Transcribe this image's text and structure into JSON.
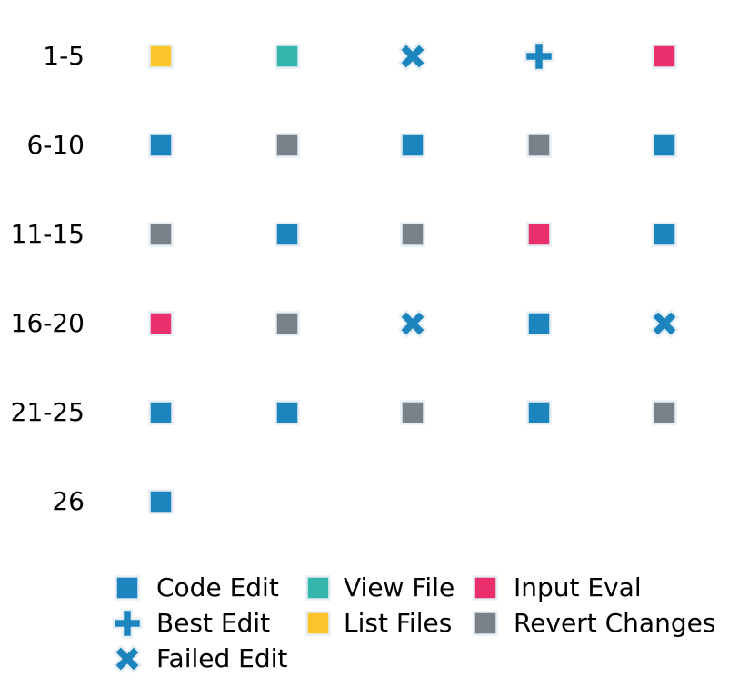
{
  "figure": {
    "background": "#ffffff",
    "text_color": "#000000"
  },
  "colors": {
    "blue": "#1d85be",
    "teal": "#36b5ac",
    "yellow": "#fdc42b",
    "pink": "#ea2f6d",
    "gray": "#7a8087",
    "marker_edge": "#e5eef5"
  },
  "marker_styles": {
    "Code Edit": {
      "shape": "square",
      "color": "#1d85be"
    },
    "View File": {
      "shape": "square",
      "color": "#36b5ac"
    },
    "Input Eval": {
      "shape": "square",
      "color": "#ea2f6d"
    },
    "Best Edit": {
      "shape": "plus",
      "color": "#1d85be"
    },
    "List Files": {
      "shape": "square",
      "color": "#fdc42b"
    },
    "Revert Changes": {
      "shape": "square",
      "color": "#7a8087"
    },
    "Failed Edit": {
      "shape": "cross",
      "color": "#1d85be"
    }
  },
  "chart_data": {
    "type": "scatter",
    "title": "",
    "xlabel": "",
    "ylabel": "",
    "grid": false,
    "legend_position": "bottom",
    "y_categories": [
      "1-5",
      "6-10",
      "11-15",
      "16-20",
      "21-25",
      "26"
    ],
    "x_positions": [
      1,
      2,
      3,
      4,
      5
    ],
    "rows": [
      {
        "label": "1-5",
        "actions": [
          "List Files",
          "View File",
          "Failed Edit",
          "Best Edit",
          "Input Eval"
        ]
      },
      {
        "label": "6-10",
        "actions": [
          "Code Edit",
          "Revert Changes",
          "Code Edit",
          "Revert Changes",
          "Code Edit"
        ]
      },
      {
        "label": "11-15",
        "actions": [
          "Revert Changes",
          "Code Edit",
          "Revert Changes",
          "Input Eval",
          "Code Edit"
        ]
      },
      {
        "label": "16-20",
        "actions": [
          "Input Eval",
          "Revert Changes",
          "Failed Edit",
          "Code Edit",
          "Failed Edit"
        ]
      },
      {
        "label": "21-25",
        "actions": [
          "Code Edit",
          "Code Edit",
          "Revert Changes",
          "Code Edit",
          "Revert Changes"
        ]
      },
      {
        "label": "26",
        "actions": [
          "Code Edit"
        ]
      }
    ],
    "legend": [
      {
        "label": "Code Edit",
        "shape": "square",
        "color": "#1d85be",
        "col": 0,
        "row": 0
      },
      {
        "label": "View File",
        "shape": "square",
        "color": "#36b5ac",
        "col": 1,
        "row": 0
      },
      {
        "label": "Input Eval",
        "shape": "square",
        "color": "#ea2f6d",
        "col": 2,
        "row": 0
      },
      {
        "label": "Best Edit",
        "shape": "plus",
        "color": "#1d85be",
        "col": 0,
        "row": 1
      },
      {
        "label": "List Files",
        "shape": "square",
        "color": "#fdc42b",
        "col": 1,
        "row": 1
      },
      {
        "label": "Revert Changes",
        "shape": "square",
        "color": "#7a8087",
        "col": 2,
        "row": 1
      },
      {
        "label": "Failed Edit",
        "shape": "cross",
        "color": "#1d85be",
        "col": 0,
        "row": 2
      }
    ]
  }
}
